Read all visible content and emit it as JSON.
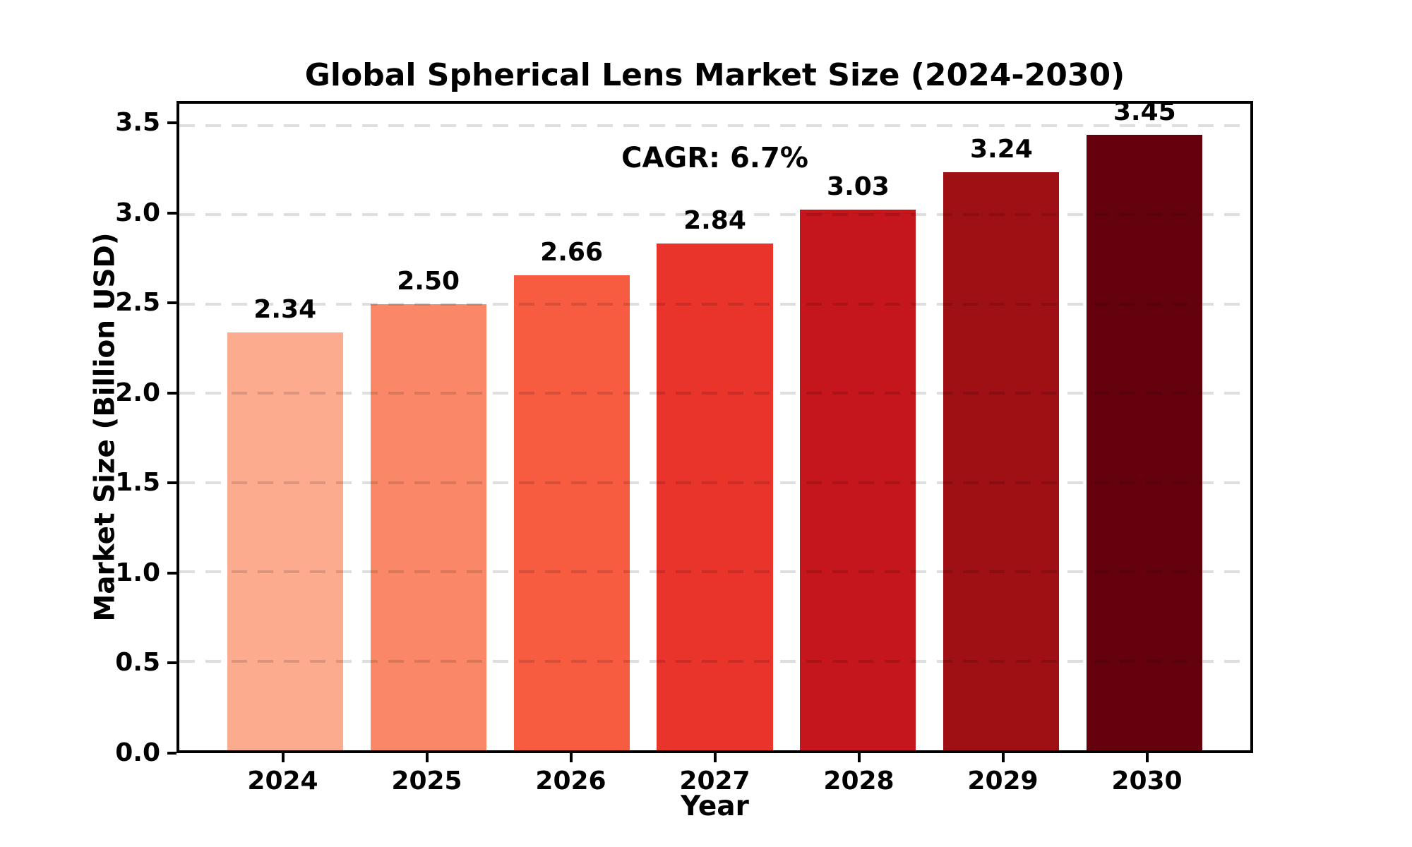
{
  "chart_data": {
    "type": "bar",
    "title": "Global Spherical Lens Market Size (2024-2030)",
    "xlabel": "Year",
    "ylabel": "Market Size (Billion USD)",
    "categories": [
      "2024",
      "2025",
      "2026",
      "2027",
      "2028",
      "2029",
      "2030"
    ],
    "values": [
      2.34,
      2.5,
      2.66,
      2.84,
      3.03,
      3.24,
      3.45
    ],
    "value_labels": [
      "2.34",
      "2.50",
      "2.66",
      "2.84",
      "3.03",
      "3.24",
      "3.45"
    ],
    "bar_colors": [
      "#fcab8f",
      "#fa8767",
      "#f75b40",
      "#e8342a",
      "#c4161c",
      "#9e1013",
      "#65000d"
    ],
    "annotation": {
      "text": "CAGR: 6.7%"
    },
    "ylim": [
      0,
      3.6225
    ],
    "yticks": [
      0,
      0.5,
      1.0,
      1.5,
      2.0,
      2.5,
      3.0,
      3.5
    ],
    "ytick_labels": [
      "0.0",
      "0.5",
      "1.0",
      "1.5",
      "2.0",
      "2.5",
      "3.0",
      "3.5"
    ],
    "grid": {
      "axis": "y",
      "style": "dashed",
      "color": "rgba(0,0,0,0.13)"
    },
    "legend": "none",
    "background": "#ffffff",
    "frame_color": "#000000",
    "text_color": "#000000"
  }
}
